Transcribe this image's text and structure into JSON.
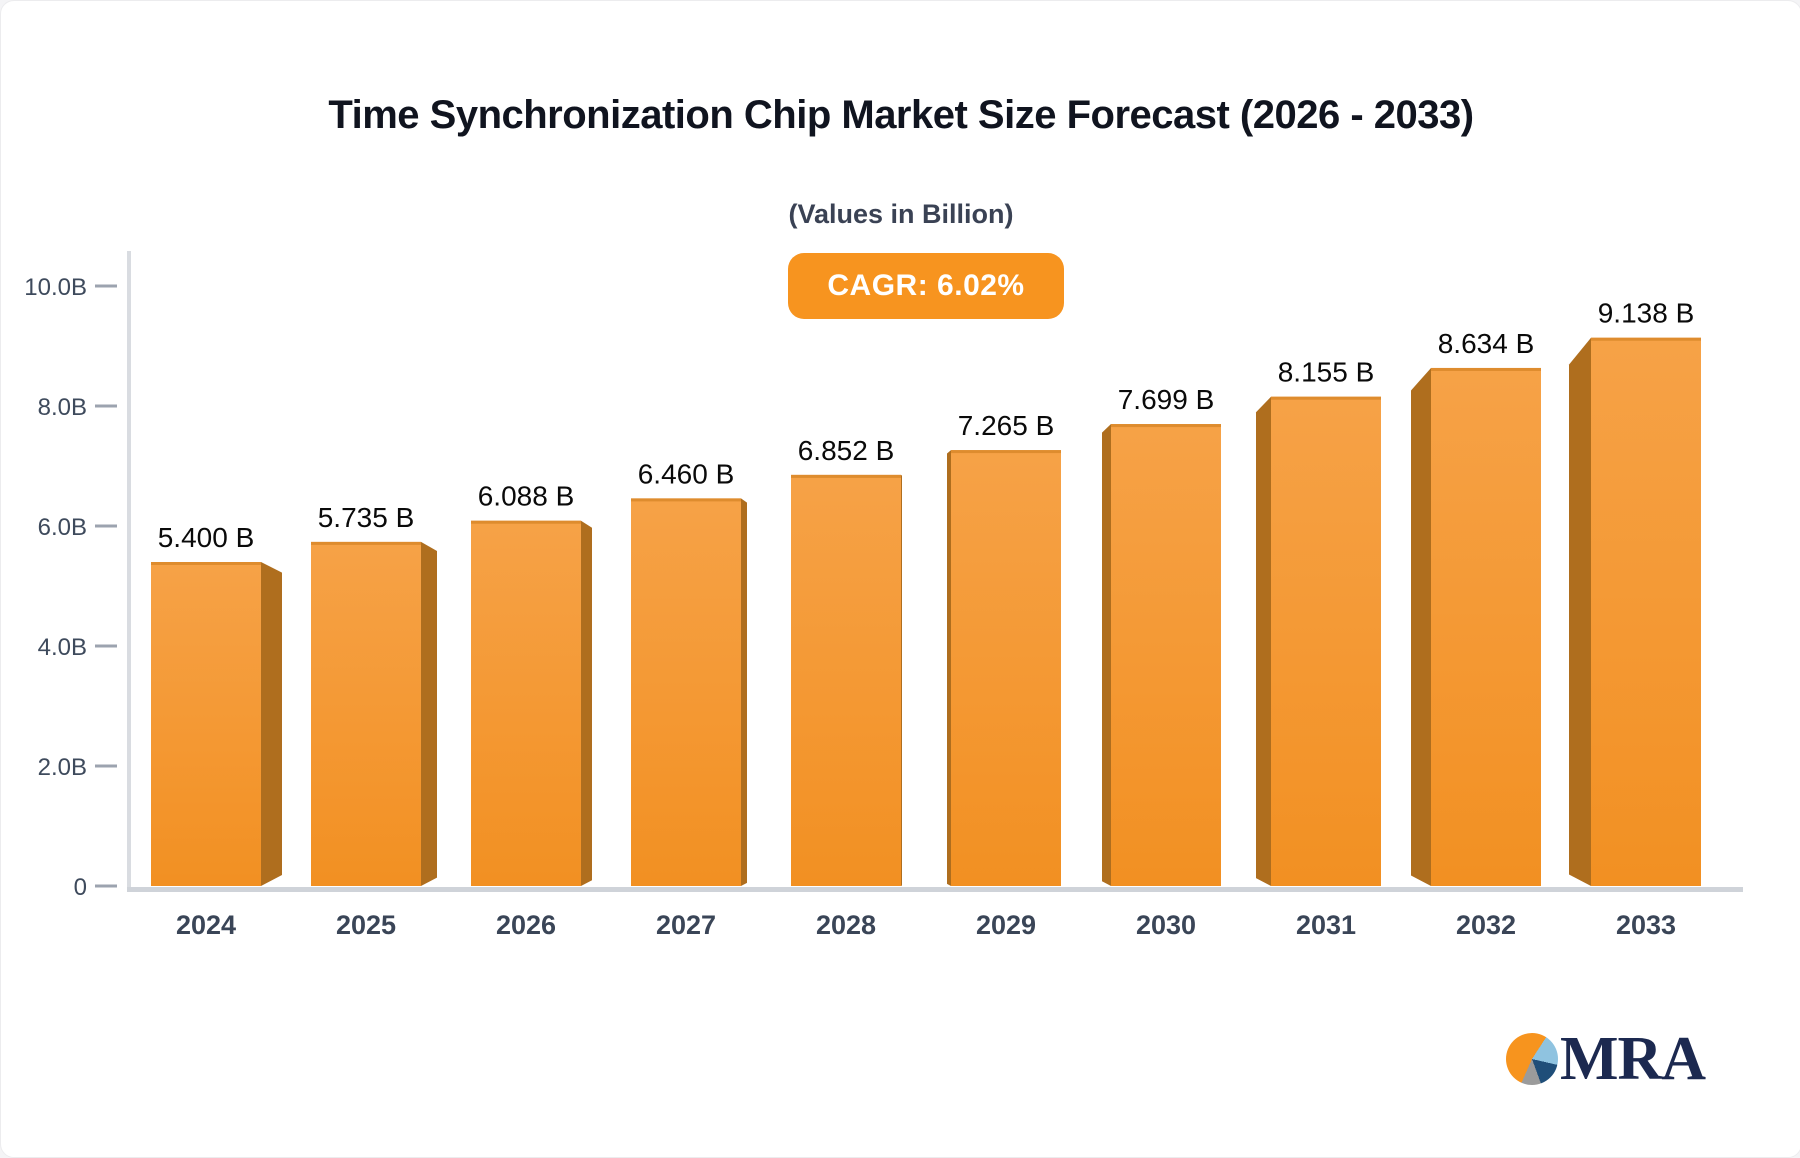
{
  "header": {
    "title": "Time Synchronization Chip Market Size Forecast (2026 - 2033)",
    "subtitle": "(Values in Billion)"
  },
  "badge": {
    "label": "CAGR: 6.02%",
    "bg": "#F7941F",
    "text_color": "#FFFFFF"
  },
  "chart_data": {
    "type": "bar",
    "title": "Time Synchronization Chip Market Size Forecast (2026 - 2033)",
    "subtitle": "(Values in Billion)",
    "unit": "Billion",
    "cagr_label": "CAGR: 6.02%",
    "categories": [
      "2024",
      "2025",
      "2026",
      "2027",
      "2028",
      "2029",
      "2030",
      "2031",
      "2032",
      "2033"
    ],
    "values": [
      5.4,
      5.735,
      6.088,
      6.46,
      6.852,
      7.265,
      7.699,
      8.155,
      8.634,
      9.138
    ],
    "value_labels": [
      "5.400 B",
      "5.735 B",
      "6.088 B",
      "6.460 B",
      "6.852 B",
      "7.265 B",
      "7.699 B",
      "8.155 B",
      "8.634 B",
      "9.138 B"
    ],
    "xlabel": "",
    "ylabel": "",
    "ylim": [
      0,
      10
    ],
    "y_ticks": [
      {
        "value": 0,
        "label": "0"
      },
      {
        "value": 2,
        "label": "2.0B"
      },
      {
        "value": 4,
        "label": "4.0B"
      },
      {
        "value": 6,
        "label": "6.0B"
      },
      {
        "value": 8,
        "label": "8.0B"
      },
      {
        "value": 10,
        "label": "10.0B"
      }
    ],
    "grid": false,
    "legend": "none",
    "style": {
      "bar_front_top": "#F6A247",
      "bar_front_bottom": "#F29022",
      "bar_side": "#AF6E1E",
      "bar_top_edge": "#DE8C2E",
      "axis_line": "#D9DCE1",
      "baseline": "#CFD3D9",
      "tick_dash": "#9CA3AF",
      "tick_text": "#3E4A5C",
      "year_text": "#3A4557",
      "value_text": "#0a0a0a"
    }
  },
  "logo": {
    "text": "MRA",
    "pie_colors": {
      "orange": "#F7941E",
      "light_blue": "#8FC3E0",
      "navy": "#1F4E79",
      "gray": "#9B9B9B"
    },
    "text_color": "#1C2950"
  }
}
